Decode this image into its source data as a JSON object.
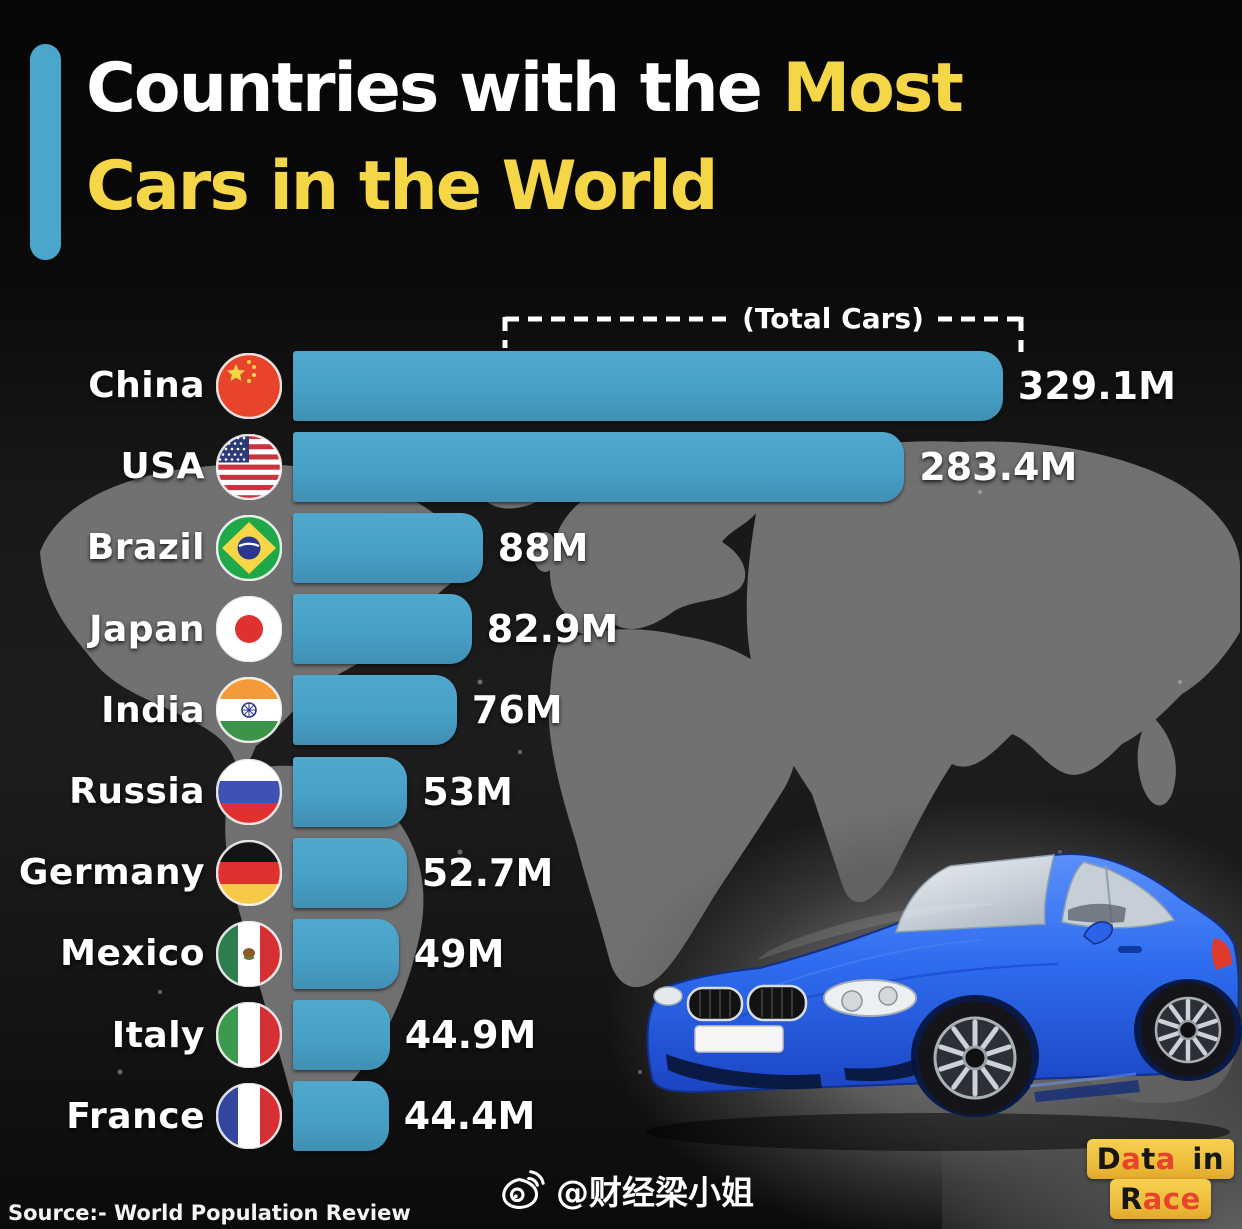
{
  "title": {
    "prefix": "Countries with the ",
    "highlight": "Most",
    "line2": "Cars in the World"
  },
  "chart_data": {
    "type": "bar",
    "orientation": "horizontal",
    "title": "Countries with the Most Cars in the World",
    "annotation": "(Total Cars)",
    "unit": "millions of cars",
    "bar_color": "#47A0C5",
    "xlim": [
      0,
      340
    ],
    "categories": [
      "China",
      "USA",
      "Brazil",
      "Japan",
      "India",
      "Russia",
      "Germany",
      "Mexico",
      "Italy",
      "France"
    ],
    "values": [
      329.1,
      283.4,
      88,
      82.9,
      76,
      53,
      52.7,
      49,
      44.9,
      44.4
    ],
    "rows": [
      {
        "country": "China",
        "flag": "china-flag-icon",
        "value": 329.1,
        "label": "329.1M"
      },
      {
        "country": "USA",
        "flag": "usa-flag-icon",
        "value": 283.4,
        "label": "283.4M"
      },
      {
        "country": "Brazil",
        "flag": "brazil-flag-icon",
        "value": 88,
        "label": "88M"
      },
      {
        "country": "Japan",
        "flag": "japan-flag-icon",
        "value": 82.9,
        "label": "82.9M"
      },
      {
        "country": "India",
        "flag": "india-flag-icon",
        "value": 76,
        "label": "76M"
      },
      {
        "country": "Russia",
        "flag": "russia-flag-icon",
        "value": 53,
        "label": "53M"
      },
      {
        "country": "Germany",
        "flag": "germany-flag-icon",
        "value": 52.7,
        "label": "52.7M"
      },
      {
        "country": "Mexico",
        "flag": "mexico-flag-icon",
        "value": 49,
        "label": "49M"
      },
      {
        "country": "Italy",
        "flag": "italy-flag-icon",
        "value": 44.9,
        "label": "44.9M"
      },
      {
        "country": "France",
        "flag": "france-flag-icon",
        "value": 44.4,
        "label": "44.4M"
      }
    ]
  },
  "footer": {
    "source": "Source:- World Population Review",
    "watermark": "@财经梁小姐"
  },
  "logo": {
    "background": "#EDBE3C",
    "red": "#E8432D",
    "black": "#161616",
    "line1": [
      {
        "ch": "D",
        "color": "#161616"
      },
      {
        "ch": "a",
        "color": "#E8432D"
      },
      {
        "ch": "t",
        "color": "#161616"
      },
      {
        "ch": "a",
        "color": "#E8432D"
      },
      {
        "ch": " ",
        "color": ""
      },
      {
        "ch": "i",
        "color": "#161616"
      },
      {
        "ch": "n",
        "color": "#161616"
      }
    ],
    "line2": [
      {
        "ch": "R",
        "color": "#161616"
      },
      {
        "ch": "a",
        "color": "#E8432D"
      },
      {
        "ch": "c",
        "color": "#E8432D"
      },
      {
        "ch": "e",
        "color": "#E8432D"
      }
    ]
  }
}
